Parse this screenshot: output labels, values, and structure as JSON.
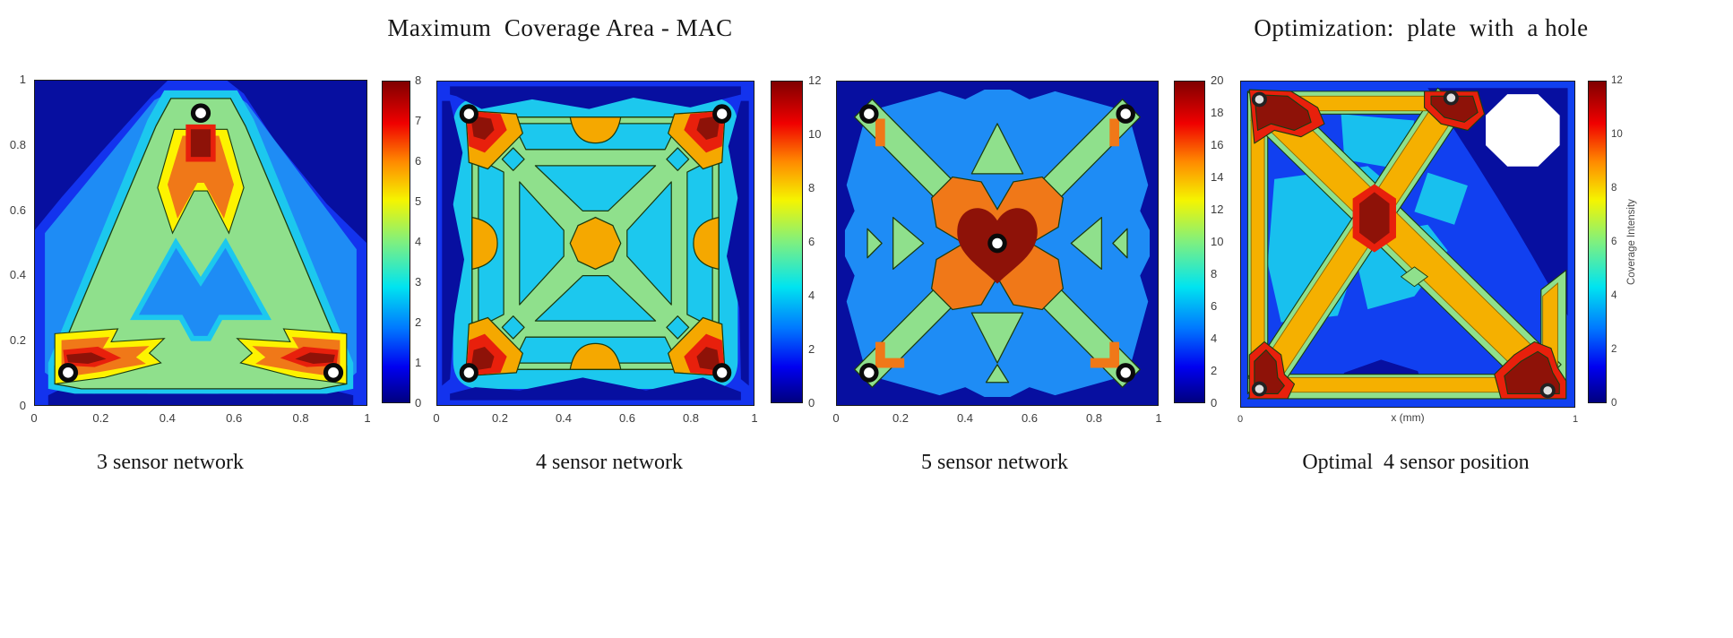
{
  "titles": {
    "mac": "Maximum  Coverage Area - MAC",
    "optimization": "Optimization:  plate  with  a hole"
  },
  "palette": {
    "navy": "#070FA0",
    "royal_blue": "#1333EE",
    "azure": "#1E8CF5",
    "cyan": "#1CC8EE",
    "green": "#8FE08C",
    "yellow": "#FDF300",
    "amber": "#F5A800",
    "orange": "#F07818",
    "red": "#E8200C",
    "dark_red": "#8E1208",
    "hole_white": "#FFFFFF"
  },
  "chart_data": [
    {
      "type": "filled_contour",
      "caption": "3 sensor network",
      "xlim": [
        0,
        1
      ],
      "ylim": [
        0,
        1
      ],
      "xticks": [
        "0",
        "0.2",
        "0.4",
        "0.6",
        "0.8",
        "1"
      ],
      "yticks_top_to_bottom": [
        "1",
        "0.8",
        "0.6",
        "0.4",
        "0.2",
        "0"
      ],
      "colorbar": {
        "min": 0,
        "max": 8,
        "ticks_top_to_bottom": [
          "8",
          "7",
          "6",
          "5",
          "4",
          "3",
          "2",
          "1",
          "0"
        ]
      },
      "sensors_xy": [
        [
          0.5,
          0.9
        ],
        [
          0.1,
          0.1
        ],
        [
          0.9,
          0.1
        ]
      ],
      "pattern": "triangular coverage band linking the three sensors, hot spots at each sensor"
    },
    {
      "type": "filled_contour",
      "caption": "4 sensor network",
      "xlim": [
        0,
        1
      ],
      "ylim": [
        0,
        1
      ],
      "xticks": [
        "0",
        "0.2",
        "0.4",
        "0.6",
        "0.8",
        "1"
      ],
      "colorbar": {
        "min": 0,
        "max": 12,
        "ticks_top_to_bottom": [
          "12",
          "10",
          "8",
          "6",
          "4",
          "2",
          "0"
        ]
      },
      "sensors_xy": [
        [
          0.1,
          0.9
        ],
        [
          0.9,
          0.9
        ],
        [
          0.1,
          0.1
        ],
        [
          0.9,
          0.1
        ]
      ],
      "pattern": "square frame with X diagonals, amber octagon at center, hot corners at sensors"
    },
    {
      "type": "filled_contour",
      "caption": "5 sensor network",
      "xlim": [
        0,
        1
      ],
      "ylim": [
        0,
        1
      ],
      "xticks": [
        "0",
        "0.2",
        "0.4",
        "0.6",
        "0.8",
        "1"
      ],
      "colorbar": {
        "min": 0,
        "max": 20,
        "ticks_top_to_bottom": [
          "20",
          "18",
          "16",
          "14",
          "12",
          "10",
          "8",
          "6",
          "4",
          "2",
          "0"
        ]
      },
      "sensors_xy": [
        [
          0.1,
          0.9
        ],
        [
          0.9,
          0.9
        ],
        [
          0.5,
          0.5
        ],
        [
          0.1,
          0.1
        ],
        [
          0.9,
          0.1
        ]
      ],
      "pattern": "green X between corner sensors, orange four-petal blob and dark-red core at center sensor"
    },
    {
      "type": "filled_contour",
      "caption": "Optimal  4 sensor position",
      "xlabel": "x (mm)",
      "xlim": [
        0,
        1
      ],
      "ylim": [
        0,
        1
      ],
      "xticks": [
        "0",
        "1"
      ],
      "colorbar": {
        "min": 0,
        "max": 12,
        "label": "Coverage Intensity",
        "ticks_top_to_bottom": [
          "12",
          "10",
          "8",
          "6",
          "4",
          "2",
          "0"
        ]
      },
      "sensors_xy": [
        [
          0.05,
          0.95
        ],
        [
          0.63,
          0.95
        ],
        [
          0.05,
          0.05
        ],
        [
          0.92,
          0.05
        ]
      ],
      "hole": {
        "shape": "octagon",
        "center_xy": [
          0.845,
          0.855
        ],
        "radius": 0.12
      },
      "pattern": "plate with octagonal hole top-right, amber frame and X diagonals, dark-red blobs at the four optimal sensor sites"
    }
  ]
}
